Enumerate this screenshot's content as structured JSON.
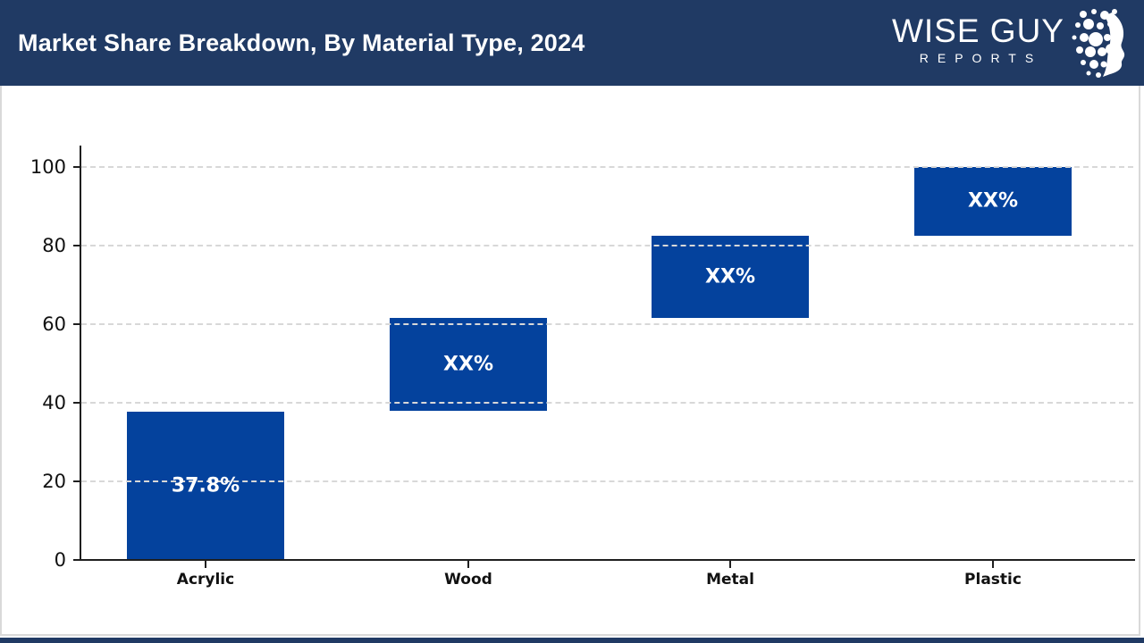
{
  "header": {
    "title": "Market Share Breakdown, By Material Type, 2024",
    "logo": {
      "wordmark": "WISE GUY",
      "subtext": "REPORTS"
    }
  },
  "watermark": {
    "wordmark": "WISE GUY",
    "subtext": "REPORTS"
  },
  "footer": {},
  "chart_data": {
    "type": "bar",
    "variant": "waterfall",
    "title": "Market Share Breakdown, By Material Type, 2024",
    "categories": [
      "Acrylic",
      "Wood",
      "Metal",
      "Plastic"
    ],
    "segments": [
      {
        "category": "Acrylic",
        "start": 0,
        "end": 37.8,
        "label": "37.8%"
      },
      {
        "category": "Wood",
        "start": 38,
        "end": 61.5,
        "label": "XX%"
      },
      {
        "category": "Metal",
        "start": 61.6,
        "end": 82.6,
        "label": "XX%"
      },
      {
        "category": "Plastic",
        "start": 82.6,
        "end": 100,
        "label": "XX%"
      }
    ],
    "xlabel": "",
    "ylabel": "",
    "ylim": [
      0,
      100
    ],
    "yticks": [
      0,
      20,
      40,
      60,
      80,
      100
    ],
    "grid": "dashed-horizontal-over-bars",
    "legend": "none",
    "bar_color": "#04429d",
    "bar_label_color": "#ffffff"
  },
  "colors": {
    "header_bg": "#203a64",
    "footer_bg": "#203a64",
    "bar": "#04429d",
    "grid": "#d8d8d8",
    "axis": "#1f1f1f",
    "watermark": "#f0f0f1",
    "frame_border": "#d9d9d9"
  }
}
